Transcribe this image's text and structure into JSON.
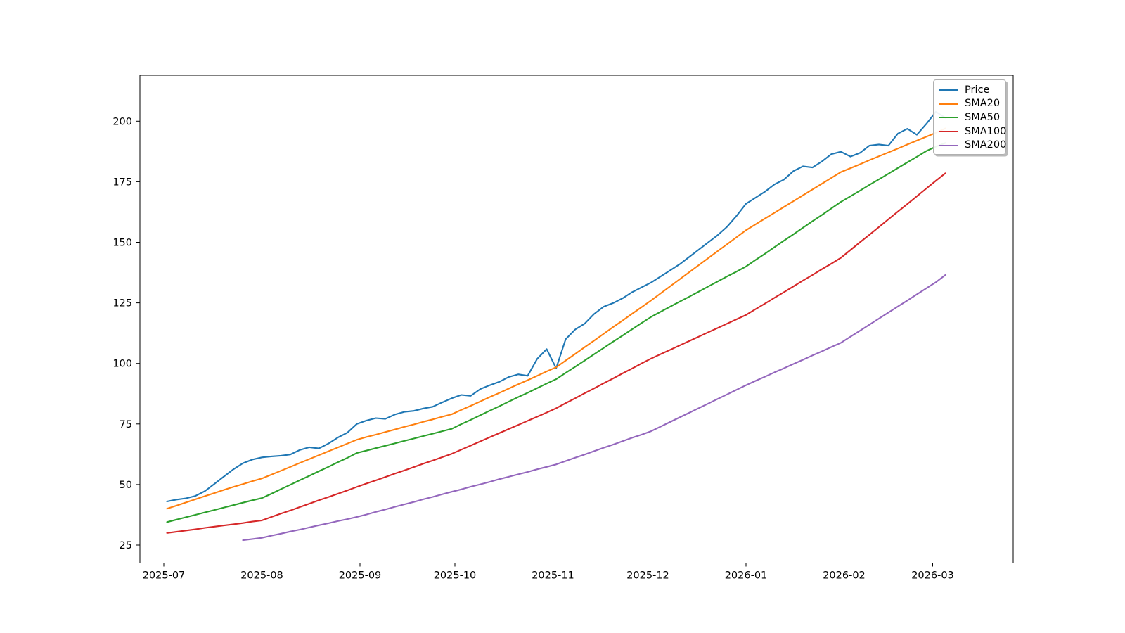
{
  "figure": {
    "background": "#ffffff",
    "axis_color": "#000000"
  },
  "chart_data": {
    "type": "line",
    "title": "",
    "xlabel": "",
    "ylabel": "",
    "grid": false,
    "legend_position": "upper right",
    "x_start_date": "2025-07-02",
    "x_step_days": 3,
    "x_tick_labels": [
      "2025-07",
      "2025-08",
      "2025-09",
      "2025-10",
      "2025-11",
      "2025-12",
      "2026-01",
      "2026-02",
      "2026-03"
    ],
    "y_tick_labels": [
      25,
      50,
      75,
      100,
      125,
      150,
      175,
      200
    ],
    "ylim": [
      17.6,
      219
    ],
    "xlim": [
      "2025-06-23",
      "2026-03-26"
    ],
    "series": [
      {
        "name": "Price",
        "color": "#1f77b4",
        "values": [
          43.0,
          43.8,
          44.3,
          45.3,
          47.3,
          50.3,
          53.3,
          56.3,
          58.8,
          60.3,
          61.2,
          61.6,
          61.9,
          62.4,
          64.3,
          65.4,
          64.9,
          66.9,
          69.4,
          71.4,
          75.0,
          76.4,
          77.4,
          77.1,
          78.9,
          80.0,
          80.4,
          81.4,
          82.1,
          83.9,
          85.6,
          87.0,
          86.6,
          89.4,
          91.0,
          92.4,
          94.4,
          95.5,
          94.9,
          101.9,
          105.9,
          98.0,
          110.0,
          114.0,
          116.4,
          120.4,
          123.4,
          124.9,
          126.9,
          129.4,
          131.4,
          133.4,
          135.9,
          138.4,
          140.9,
          143.9,
          146.9,
          149.9,
          152.9,
          156.4,
          160.9,
          165.9,
          168.4,
          170.9,
          173.9,
          175.9,
          179.4,
          181.4,
          180.9,
          183.4,
          186.4,
          187.4,
          185.4,
          186.9,
          189.9,
          190.4,
          189.9,
          194.9,
          196.9,
          194.4,
          198.9,
          203.9,
          201.4
        ]
      },
      {
        "name": "SMA20",
        "color": "#ff7f0e",
        "values": [
          40.0,
          41.3,
          42.6,
          43.9,
          45.2,
          46.5,
          47.8,
          49.0,
          50.2,
          51.4,
          52.5,
          54.1,
          55.7,
          57.3,
          58.9,
          60.5,
          62.1,
          63.7,
          65.3,
          66.9,
          68.5,
          69.6,
          70.6,
          71.7,
          72.7,
          73.8,
          74.8,
          75.9,
          76.9,
          78.0,
          79.0,
          80.8,
          82.5,
          84.3,
          86.1,
          87.8,
          89.6,
          91.4,
          93.1,
          94.9,
          96.7,
          98.4,
          101.2,
          103.9,
          106.7,
          109.4,
          112.2,
          115.0,
          117.7,
          120.5,
          123.2,
          126.0,
          128.9,
          131.8,
          134.7,
          137.6,
          140.5,
          143.4,
          146.3,
          149.2,
          152.1,
          155.0,
          157.4,
          159.8,
          162.2,
          164.6,
          167.0,
          169.4,
          171.8,
          174.2,
          176.6,
          179.0,
          180.6,
          182.2,
          183.9,
          185.5,
          187.1,
          188.7,
          190.4,
          192.0,
          193.6,
          195.2,
          197.0
        ]
      },
      {
        "name": "SMA50",
        "color": "#2ca02c",
        "values": [
          34.5,
          35.5,
          36.5,
          37.5,
          38.5,
          39.5,
          40.5,
          41.5,
          42.5,
          43.5,
          44.4,
          46.2,
          48.1,
          49.9,
          51.8,
          53.6,
          55.5,
          57.3,
          59.2,
          61.0,
          63.0,
          64.0,
          65.0,
          66.0,
          67.0,
          68.0,
          69.0,
          70.0,
          71.0,
          72.0,
          73.0,
          74.9,
          76.7,
          78.6,
          80.5,
          82.3,
          84.2,
          86.1,
          87.9,
          89.8,
          91.7,
          93.5,
          96.1,
          98.6,
          101.2,
          103.8,
          106.4,
          109.0,
          111.5,
          114.1,
          116.7,
          119.2,
          121.3,
          123.4,
          125.5,
          127.5,
          129.6,
          131.7,
          133.8,
          135.9,
          137.9,
          140.0,
          142.7,
          145.3,
          148.0,
          150.7,
          153.3,
          156.0,
          158.7,
          161.3,
          164.0,
          166.7,
          169.0,
          171.3,
          173.7,
          176.0,
          178.3,
          180.7,
          183.0,
          185.3,
          187.7,
          189.5,
          191.0
        ]
      },
      {
        "name": "SMA100",
        "color": "#d62728",
        "values": [
          30.0,
          30.5,
          31.0,
          31.5,
          32.1,
          32.6,
          33.1,
          33.6,
          34.1,
          34.7,
          35.2,
          36.6,
          38.0,
          39.3,
          40.7,
          42.1,
          43.5,
          44.8,
          46.2,
          47.6,
          49.0,
          50.4,
          51.7,
          53.1,
          54.5,
          55.8,
          57.2,
          58.6,
          59.9,
          61.3,
          62.7,
          64.4,
          66.1,
          67.8,
          69.5,
          71.2,
          72.9,
          74.6,
          76.3,
          78.0,
          79.7,
          81.5,
          83.6,
          85.6,
          87.7,
          89.7,
          91.8,
          93.8,
          95.9,
          97.9,
          100.0,
          102.0,
          103.8,
          105.6,
          107.4,
          109.2,
          111.0,
          112.8,
          114.6,
          116.4,
          118.2,
          120.0,
          122.4,
          124.7,
          127.1,
          129.4,
          131.8,
          134.2,
          136.5,
          138.9,
          141.2,
          143.6,
          146.8,
          150.0,
          153.1,
          156.3,
          159.5,
          162.7,
          165.8,
          169.0,
          172.2,
          175.4,
          178.5
        ]
      },
      {
        "name": "SMA200",
        "color": "#9467bd",
        "values": [
          null,
          null,
          null,
          null,
          null,
          null,
          null,
          null,
          27.0,
          27.5,
          28.0,
          28.9,
          29.7,
          30.6,
          31.4,
          32.3,
          33.2,
          34.0,
          34.9,
          35.7,
          36.6,
          37.6,
          38.7,
          39.7,
          40.8,
          41.8,
          42.8,
          43.9,
          44.9,
          46.0,
          47.0,
          48.0,
          49.1,
          50.1,
          51.1,
          52.2,
          53.2,
          54.2,
          55.2,
          56.3,
          57.3,
          58.3,
          59.7,
          61.1,
          62.4,
          63.8,
          65.2,
          66.5,
          67.9,
          69.3,
          70.6,
          72.0,
          73.9,
          75.8,
          77.7,
          79.6,
          81.5,
          83.4,
          85.3,
          87.2,
          89.1,
          91.0,
          92.8,
          94.5,
          96.3,
          98.0,
          99.8,
          101.5,
          103.3,
          105.0,
          106.8,
          108.5,
          111.0,
          113.5,
          116.0,
          118.5,
          121.0,
          123.5,
          126.0,
          128.5,
          131.0,
          133.5,
          136.5
        ]
      }
    ]
  }
}
